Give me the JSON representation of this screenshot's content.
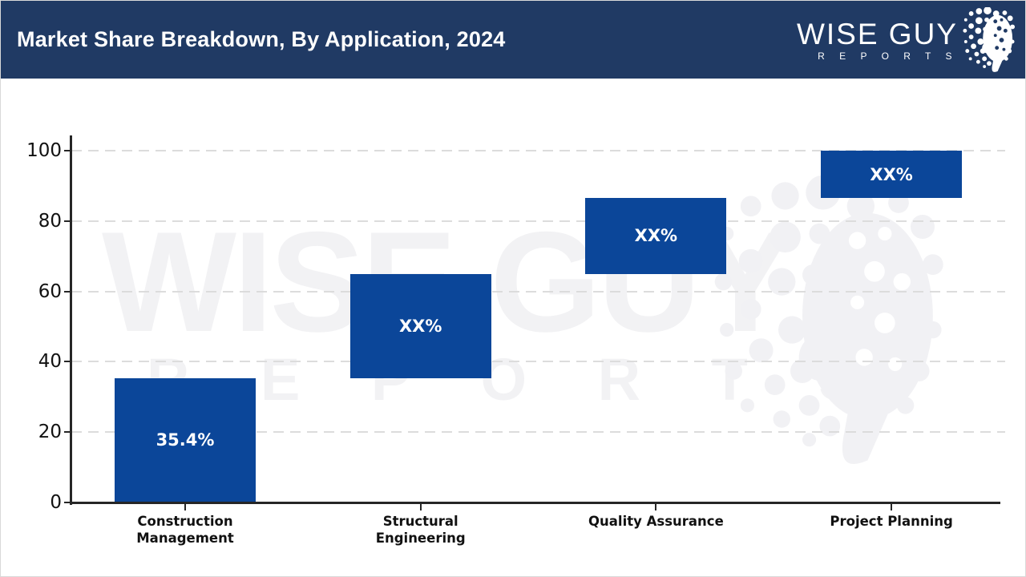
{
  "header": {
    "title": "Market Share Breakdown, By Application, 2024",
    "logo": {
      "name": "WISE GUY",
      "tagline": "R E P O R T S"
    },
    "bg_color": "#203a64"
  },
  "watermark": {
    "line1": "WISE GUY",
    "line2": "R E P O R T S"
  },
  "chart_data": {
    "type": "bar",
    "subtype": "waterfall-floating-segments",
    "title": "Market Share Breakdown, By Application, 2024",
    "categories": [
      "Construction Management",
      "Structural Engineering",
      "Quality Assurance",
      "Project Planning"
    ],
    "bars": [
      {
        "category": "Construction Management",
        "axis_label": "Construction\nManagement",
        "start": 0,
        "end": 35.4,
        "label": "35.4%"
      },
      {
        "category": "Structural Engineering",
        "axis_label": "Structural\nEngineering",
        "start": 35.4,
        "end": 65,
        "label": "XX%"
      },
      {
        "category": "Quality Assurance",
        "axis_label": "Quality Assurance",
        "start": 65,
        "end": 86.5,
        "label": "XX%"
      },
      {
        "category": "Project Planning",
        "axis_label": "Project Planning",
        "start": 86.5,
        "end": 100,
        "label": "XX%"
      }
    ],
    "xlabel": "",
    "ylabel": "",
    "ylim": [
      0,
      100
    ],
    "yticks": [
      0,
      20,
      40,
      60,
      80,
      100
    ],
    "grid": "horizontal-dashed",
    "legend": "none",
    "bar_color": "#0b4699",
    "bar_label_color": "#ffffff"
  }
}
